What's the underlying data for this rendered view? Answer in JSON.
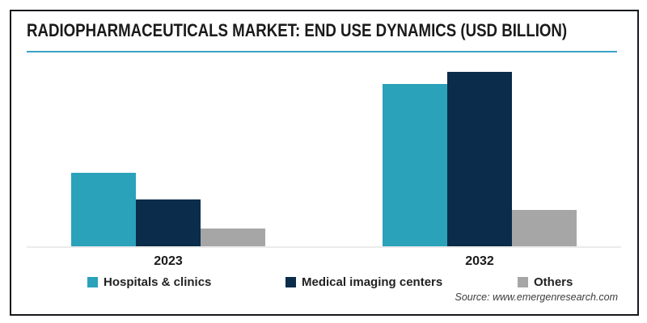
{
  "header": {
    "title": "RADIOPHARMACEUTICALS MARKET: END USE DYNAMICS (USD BILLION)"
  },
  "footer": {
    "source": "Source: www.emergenresearch.com"
  },
  "colors": {
    "teal": "#2aa2ba",
    "navy": "#0b2c4a",
    "gray": "#a6a6a6",
    "title_rule": "#3ba2c6",
    "axis_line": "#ebebeb",
    "frame_border": "#15181c",
    "text": "#1a1a1a"
  },
  "chart_data": {
    "type": "bar",
    "title": "RADIOPHARMACEUTICALS MARKET: END USE DYNAMICS (USD BILLION)",
    "categories": [
      "2023",
      "2032"
    ],
    "series": [
      {
        "name": "Hospitals & clinics",
        "color": "#2aa2ba",
        "values": [
          4.2,
          9.3
        ]
      },
      {
        "name": "Medical imaging centers",
        "color": "#0b2c4a",
        "values": [
          2.7,
          10.0
        ]
      },
      {
        "name": "Others",
        "color": "#a6a6a6",
        "values": [
          1.0,
          2.1
        ]
      }
    ],
    "xlabel": "",
    "ylabel": "",
    "ylim": [
      0,
      10.5
    ],
    "units": "USD Billion",
    "value_axis_labels_shown": false,
    "values_estimated_from_bar_heights": true,
    "grid": false,
    "legend_position": "bottom"
  }
}
